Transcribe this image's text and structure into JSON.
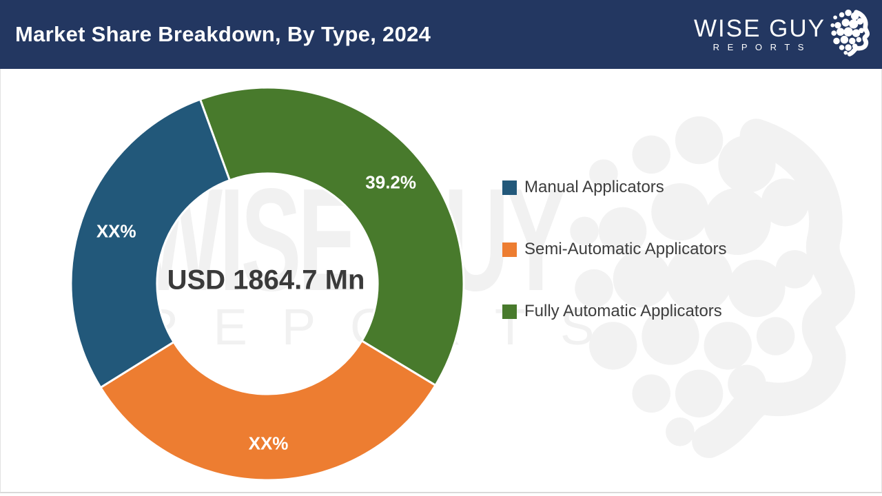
{
  "header": {
    "title": "Market Share Breakdown, By Type, 2024",
    "logo_line1": "WISE GUY",
    "logo_line2": "R E P O R T S"
  },
  "watermark": {
    "line1": "WISE GUY",
    "line2": "REPORTS"
  },
  "chart_data": {
    "type": "pie",
    "subtype": "donut",
    "title": "Market Share Breakdown, By Type, 2024",
    "center_label": "USD 1864.7 Mn",
    "start_angle_deg": -20,
    "legend_position": "right",
    "segments": [
      {
        "name": "Fully Automatic Applicators",
        "label": "39.2%",
        "value_pct": 39.2,
        "color": "#487a2c"
      },
      {
        "name": "Semi-Automatic Applicators",
        "label": "XX%",
        "value_pct": 32.5,
        "color": "#ed7d31"
      },
      {
        "name": "Manual Applicators",
        "label": "XX%",
        "value_pct": 28.3,
        "color": "#22587a"
      }
    ],
    "legend": [
      {
        "label": "Manual Applicators",
        "color": "#22587a"
      },
      {
        "label": "Semi-Automatic Applicators",
        "color": "#ed7d31"
      },
      {
        "label": "Fully Automatic Applicators",
        "color": "#487a2c"
      }
    ],
    "colors": {
      "header_bg": "#233761",
      "center_text": "#3a3a3a",
      "watermark": "#f1f1f1",
      "border": "#d9d9d9"
    }
  }
}
